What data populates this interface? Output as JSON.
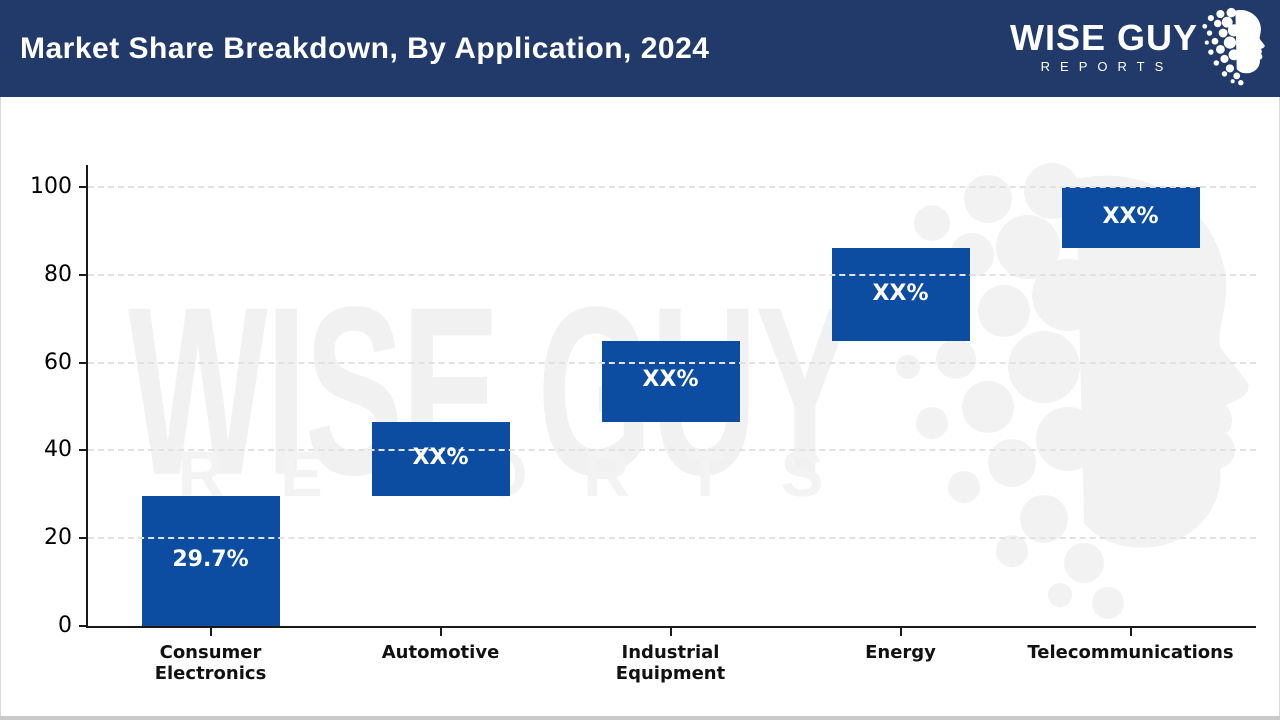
{
  "header": {
    "title": "Market Share Breakdown, By Application, 2024",
    "logo": {
      "brand": "WISE GUY",
      "sub": "REPORTS",
      "icon": "head-profile-dots-icon"
    },
    "bg_color": "#213A69"
  },
  "watermark": {
    "line1": "WISE GUY",
    "line2": "REPORTS",
    "icon": "head-profile-dots-icon",
    "color": "#f1f1f1"
  },
  "chart_data": {
    "type": "bar",
    "subtype": "waterfall",
    "title": "Market Share Breakdown, By Application, 2024",
    "xlabel": "",
    "ylabel": "",
    "categories": [
      "Consumer Electronics",
      "Automotive",
      "Industrial Equipment",
      "Energy",
      "Telecommunications"
    ],
    "category_lines": [
      [
        "Consumer",
        "Electronics"
      ],
      [
        "Automotive"
      ],
      [
        "Industrial",
        "Equipment"
      ],
      [
        "Energy"
      ],
      [
        "Telecommunications"
      ]
    ],
    "segments": [
      {
        "category": "Consumer Electronics",
        "start": 0,
        "end": 29.7,
        "label": "29.7%"
      },
      {
        "category": "Automotive",
        "start": 29.7,
        "end": 46.5,
        "label": "XX%"
      },
      {
        "category": "Industrial Equipment",
        "start": 46.5,
        "end": 65.0,
        "label": "XX%"
      },
      {
        "category": "Energy",
        "start": 65.0,
        "end": 86.0,
        "label": "XX%"
      },
      {
        "category": "Telecommunications",
        "start": 86.0,
        "end": 100.0,
        "label": "XX%"
      }
    ],
    "yticks": [
      0,
      20,
      40,
      60,
      80,
      100
    ],
    "ylim": [
      0,
      105
    ],
    "grid": "horizontal-dashed",
    "legend": "none",
    "bar_color": "#0C4DA2",
    "bar_label_color": "#ffffff",
    "axis_color": "#1a1a1a",
    "grid_color": "#e2e2e2"
  }
}
